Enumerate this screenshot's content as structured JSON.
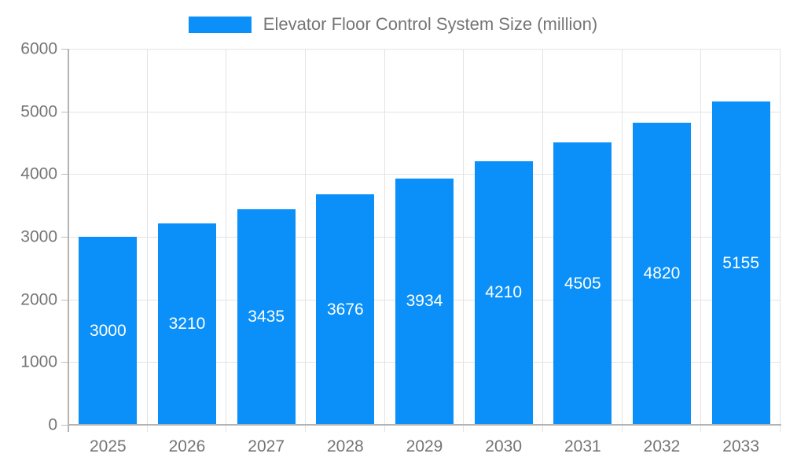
{
  "chart_data": {
    "type": "bar",
    "title": "Elevator Floor Control System Size (million)",
    "legend": [
      {
        "label": "Elevator Floor Control System Size (million)"
      }
    ],
    "legend_position": "top-center",
    "categories": [
      "2025",
      "2026",
      "2027",
      "2028",
      "2029",
      "2030",
      "2031",
      "2032",
      "2033"
    ],
    "series": [
      {
        "name": "Elevator Floor Control System Size (million)",
        "values": [
          3000,
          3210,
          3435,
          3676,
          3934,
          4210,
          4505,
          4820,
          5155
        ]
      }
    ],
    "bar_value_labels": [
      "3000",
      "3210",
      "3435",
      "3676",
      "3934",
      "4210",
      "4505",
      "4820",
      "5155"
    ],
    "xlabel": "",
    "ylabel": "",
    "ylim": [
      0,
      6000
    ],
    "yticks": [
      0,
      1000,
      2000,
      3000,
      4000,
      5000,
      6000
    ],
    "ytick_labels": [
      "0",
      "1000",
      "2000",
      "3000",
      "4000",
      "5000",
      "6000"
    ],
    "grid": true,
    "colors": {
      "bar": "#0a90f8",
      "bar_value_text": "#ffffff",
      "axis_text": "#757575",
      "legend_text": "#757575",
      "gridline": "#e3e3e3",
      "axis_line": "#b3b3b3",
      "tick_mark": "#bdbdbd",
      "background": "#ffffff"
    }
  }
}
